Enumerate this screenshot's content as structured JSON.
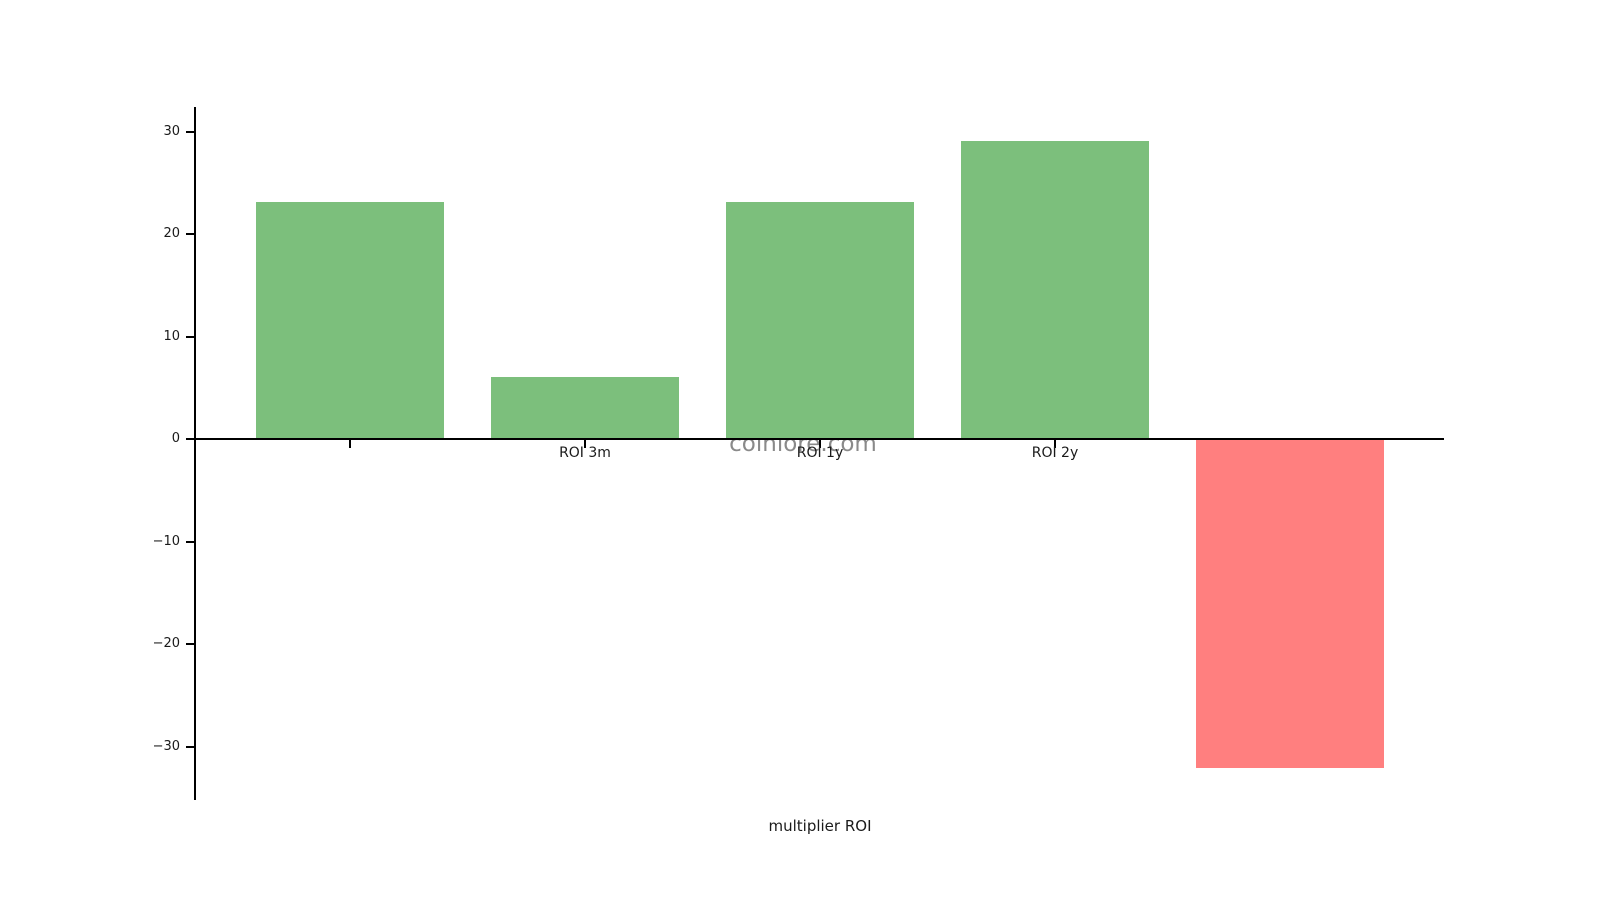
{
  "figure": {
    "watermark": "coinlore.com",
    "xlabel": "multiplier ROI"
  },
  "chart_data": {
    "type": "bar",
    "title": "",
    "xlabel": "multiplier ROI",
    "ylabel": "",
    "categories": [
      "",
      "ROI 3m",
      "ROI 1y",
      "ROI 2y",
      ""
    ],
    "values": [
      23,
      6,
      23,
      29,
      -32
    ],
    "positive_color": "#7cbf7c",
    "negative_color": "#ff7f7f",
    "yticks": [
      30,
      20,
      10,
      0,
      -10,
      -20,
      -30
    ],
    "ylim": [
      -35,
      32.5
    ],
    "xtick_visible": [
      true,
      true,
      true,
      true,
      false
    ],
    "grid": false,
    "legend_position": "none",
    "watermark": "coinlore.com",
    "axis_color": "#000000",
    "text_color": "#1a1a1a",
    "background_color": "#ffffff"
  }
}
